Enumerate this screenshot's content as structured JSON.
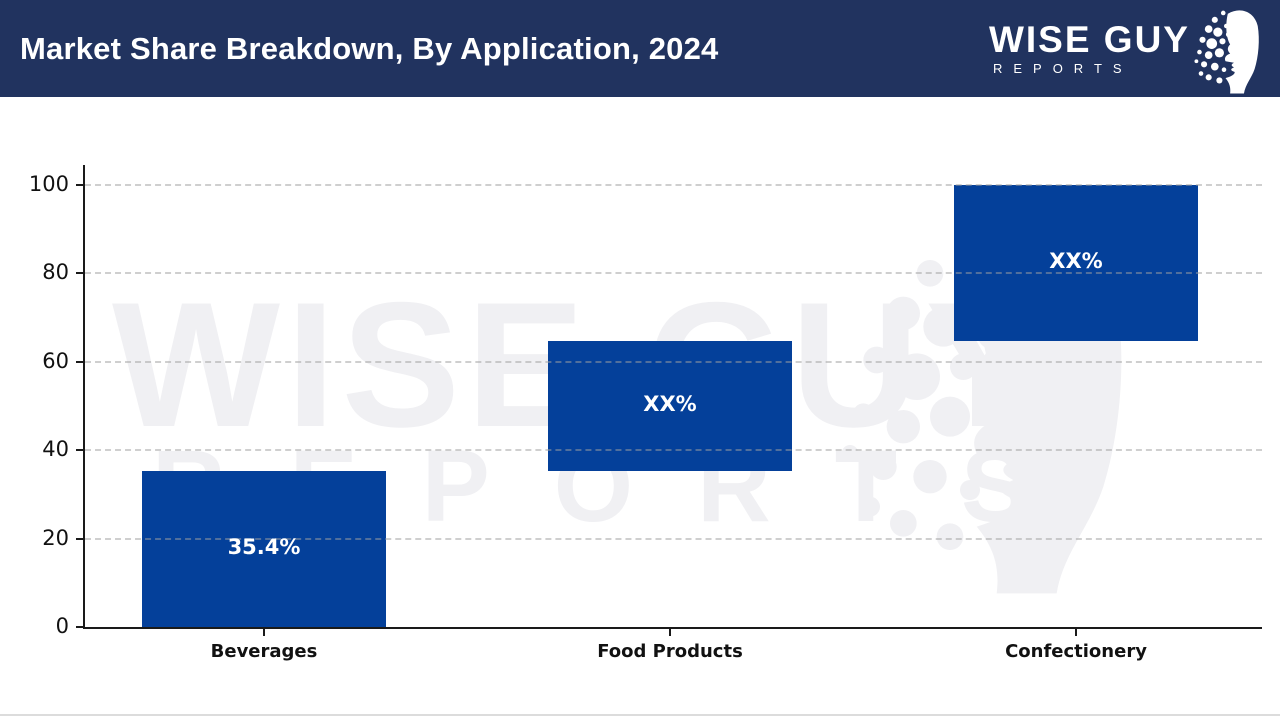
{
  "header": {
    "title": "Market Share Breakdown, By Application, 2024",
    "logo": {
      "primary": "WISE GUY",
      "secondary": "REPORTS"
    }
  },
  "watermark": {
    "primary": "WISE GUY",
    "secondary": "REPORTS"
  },
  "chart_data": {
    "type": "bar",
    "subtype": "waterfall-floating-bars",
    "title": "Market Share Breakdown, By Application, 2024",
    "categories": [
      "Beverages",
      "Food Products",
      "Confectionery"
    ],
    "bars": [
      {
        "category": "Beverages",
        "start": 0,
        "end": 35.4,
        "label": "35.4%"
      },
      {
        "category": "Food Products",
        "start": 35.4,
        "end": 64.8,
        "label": "XX%"
      },
      {
        "category": "Confectionery",
        "start": 64.8,
        "end": 100,
        "label": "XX%"
      }
    ],
    "yticks": [
      0,
      20,
      40,
      60,
      80,
      100
    ],
    "ylim": [
      0,
      103
    ],
    "xlabel": "",
    "ylabel": "",
    "grid": true,
    "legend_position": "none",
    "colors": {
      "bar": "#04409a",
      "bar_label": "#ffffff",
      "header_bg": "#21335f",
      "watermark": "#f0f0f3",
      "axis": "#1a1a1a",
      "grid": "#c8c8c8"
    }
  }
}
